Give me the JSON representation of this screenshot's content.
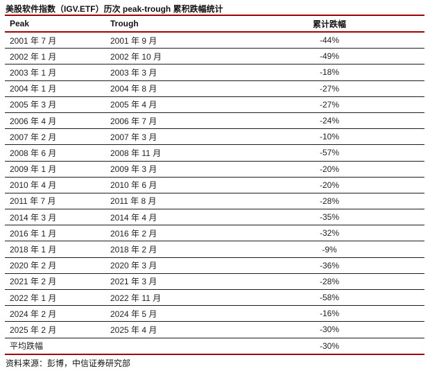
{
  "title": "美股软件指数（IGV.ETF）历次 peak-trough 累积跌幅统计",
  "table": {
    "headers": [
      "Peak",
      "Trough",
      "累计跌幅"
    ],
    "rows": [
      [
        "2001 年 7 月",
        "2001 年 9 月",
        "-44%"
      ],
      [
        "2002 年 1 月",
        "2002 年 10 月",
        "-49%"
      ],
      [
        "2003 年 1 月",
        "2003 年 3 月",
        "-18%"
      ],
      [
        "2004 年 1 月",
        "2004 年 8 月",
        "-27%"
      ],
      [
        "2005 年 3 月",
        "2005 年 4 月",
        "-27%"
      ],
      [
        "2006 年 4 月",
        "2006 年 7 月",
        "-24%"
      ],
      [
        "2007 年 2 月",
        "2007 年 3 月",
        "-10%"
      ],
      [
        "2008 年 6 月",
        "2008 年 11 月",
        "-57%"
      ],
      [
        "2009 年 1 月",
        "2009 年 3 月",
        "-20%"
      ],
      [
        "2010 年 4 月",
        "2010 年 6 月",
        "-20%"
      ],
      [
        "2011 年 7 月",
        "2011 年 8 月",
        "-28%"
      ],
      [
        "2014 年 3 月",
        "2014 年 4 月",
        "-35%"
      ],
      [
        "2016 年 1 月",
        "2016 年 2 月",
        "-32%"
      ],
      [
        "2018 年 1 月",
        "2018 年 2 月",
        "-9%"
      ],
      [
        "2020 年 2 月",
        "2020 年 3 月",
        "-36%"
      ],
      [
        "2021 年 2 月",
        "2021 年 3 月",
        "-28%"
      ],
      [
        "2022 年 1 月",
        "2022 年 11 月",
        "-58%"
      ],
      [
        "2024 年 2 月",
        "2024 年 5 月",
        "-16%"
      ],
      [
        "2025 年 2 月",
        "2025 年 4 月",
        "-30%"
      ],
      [
        "平均跌幅",
        "",
        "-30%"
      ]
    ]
  },
  "footer": "资料来源：彭博，中信证券研究部",
  "colors": {
    "rule_red": "#a00000",
    "row_separator": "#1a1a1a",
    "text": "#1f1f1f",
    "background": "#ffffff"
  }
}
